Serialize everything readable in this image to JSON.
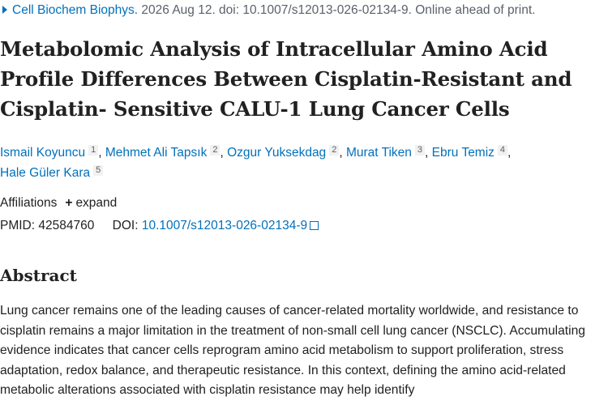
{
  "citation": {
    "journal": "Cell Biochem Biophys.",
    "details": "2026 Aug 12. doi: 10.1007/s12013-026-02134-9. Online ahead of print."
  },
  "title": "Metabolomic Analysis of Intracellular Amino Acid Profile Differences Between Cisplatin-Resistant and Cisplatin- Sensitive CALU-1 Lung Cancer Cells",
  "authors": [
    {
      "name": "Ismail Koyuncu",
      "affiliation": "1",
      "separator": ","
    },
    {
      "name": "Mehmet Ali Tapsık",
      "affiliation": "2",
      "separator": ","
    },
    {
      "name": "Ozgur Yuksekdag",
      "affiliation": "2",
      "separator": ","
    },
    {
      "name": "Murat Tiken",
      "affiliation": "3",
      "separator": ","
    },
    {
      "name": "Ebru Temiz",
      "affiliation": "4",
      "separator": ","
    },
    {
      "name": "Hale Güler Kara",
      "affiliation": "5"
    }
  ],
  "affiliations": {
    "label": "Affiliations",
    "toggle": "expand"
  },
  "identifiers": {
    "pmid_label": "PMID:",
    "pmid": "42584760",
    "doi_label": "DOI:",
    "doi": "10.1007/s12013-026-02134-9"
  },
  "abstract": {
    "heading": "Abstract",
    "text": "Lung cancer remains one of the leading causes of cancer-related mortality worldwide, and resistance to cisplatin remains a major limitation in the treatment of non-small cell lung cancer (NSCLC). Accumulating evidence indicates that cancer cells reprogram amino acid metabolism to support proliferation, stress adaptation, redox balance, and therapeutic resistance. In this context, defining the amino acid-related metabolic alterations associated with cisplatin resistance may help identify"
  }
}
